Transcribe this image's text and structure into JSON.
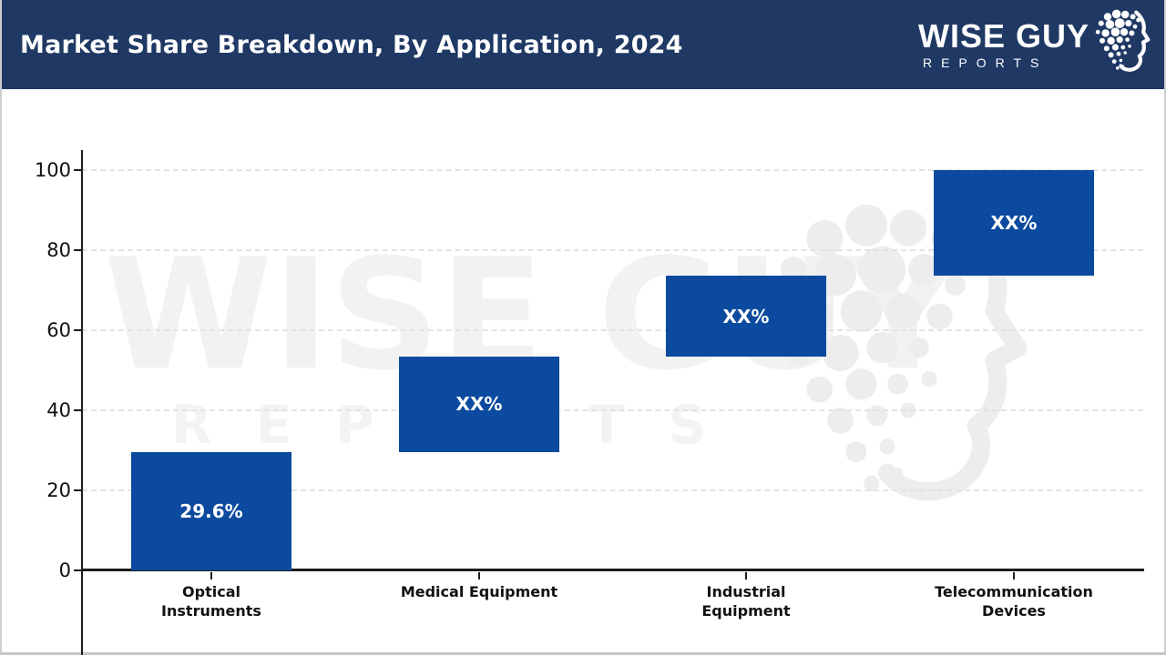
{
  "header": {
    "title": "Market Share Breakdown, By Application, 2024",
    "bg_color": "#1f3864",
    "logo": {
      "name": "WISE GUY",
      "tagline": "REPORTS"
    }
  },
  "watermark": {
    "name": "WISE GUY",
    "tagline": "REPORTS"
  },
  "chart_data": {
    "type": "bar",
    "variant": "waterfall",
    "title": "Market Share Breakdown, By Application, 2024",
    "categories": [
      "Optical\nInstruments",
      "Medical Equipment",
      "Industrial\nEquipment",
      "Telecommunication\nDevices"
    ],
    "series": [
      {
        "name": "Market share (%)",
        "segments": [
          {
            "category": "Optical\nInstruments",
            "start": 0,
            "end": 29.6,
            "label": "29.6%"
          },
          {
            "category": "Medical Equipment",
            "start": 29.6,
            "end": 53.4,
            "label": "XX%"
          },
          {
            "category": "Industrial\nEquipment",
            "start": 53.4,
            "end": 73.6,
            "label": "XX%"
          },
          {
            "category": "Telecommunication\nDevices",
            "start": 73.6,
            "end": 100,
            "label": "XX%"
          }
        ]
      }
    ],
    "ylim": [
      0,
      100
    ],
    "yticks": [
      0,
      20,
      40,
      60,
      80,
      100
    ],
    "grid": "horizontal dashed",
    "legend": "none",
    "bar_color": "#0b4a9e",
    "axis_color": "#1c1c1c"
  }
}
